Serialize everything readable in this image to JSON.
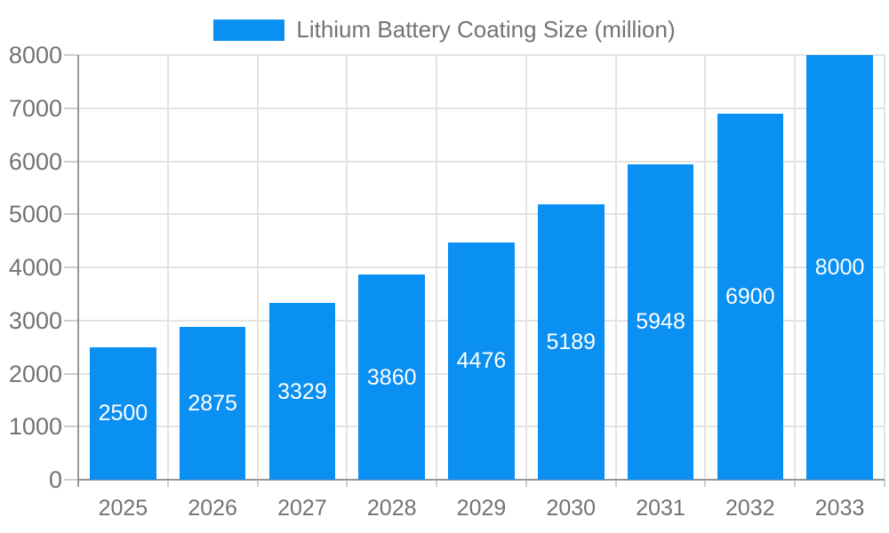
{
  "chart_data": {
    "type": "bar",
    "legend": [
      "Lithium Battery Coating Size (million)"
    ],
    "legend_position": "top",
    "categories": [
      "2025",
      "2026",
      "2027",
      "2028",
      "2029",
      "2030",
      "2031",
      "2032",
      "2033"
    ],
    "series": [
      {
        "name": "Lithium Battery Coating Size (million)",
        "values": [
          2500,
          2875,
          3329,
          3860,
          4476,
          5189,
          5948,
          6900,
          8000
        ]
      }
    ],
    "bar_value_labels": [
      2500,
      2875,
      3329,
      3860,
      4476,
      5189,
      5948,
      6900,
      8000
    ],
    "ylim": [
      0,
      8000
    ],
    "ytick_step": 1000,
    "yticks": [
      0,
      1000,
      2000,
      3000,
      4000,
      5000,
      6000,
      7000,
      8000
    ],
    "grid": true,
    "colors": {
      "bar": "#0a8ff2",
      "grid": "#e3e3e3",
      "axis": "#969696",
      "tick": "#cfcfcf",
      "text": "#737373",
      "value_label": "#ffffff",
      "background": "#ffffff"
    }
  }
}
